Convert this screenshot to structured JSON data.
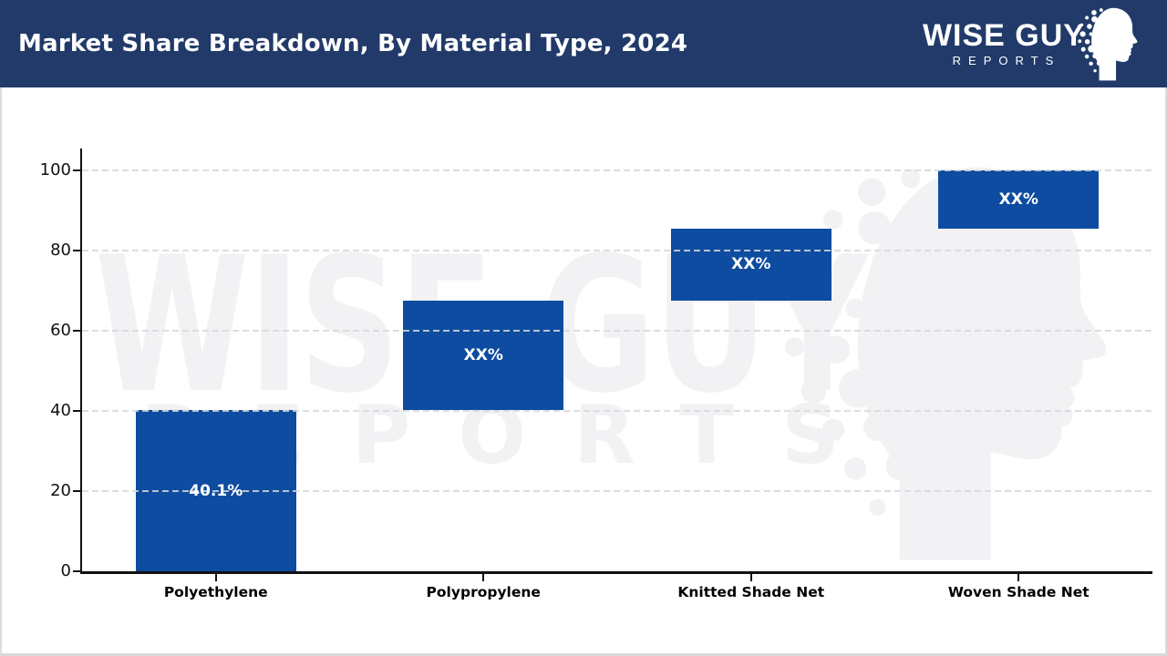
{
  "header": {
    "title": "Market Share Breakdown, By Material Type, 2024"
  },
  "brand": {
    "line1": "WISE GUY",
    "line2": "REPORTS"
  },
  "watermark": {
    "line1": "WISE GUY",
    "line2": "REPORTS"
  },
  "chart_data": {
    "type": "bar",
    "subtype": "waterfall",
    "title": "Market Share Breakdown, By Material Type, 2024",
    "categories": [
      "Polyethylene",
      "Polypropylene",
      "Knitted Shade Net",
      "Woven Shade Net"
    ],
    "segments": [
      [
        0,
        40.1
      ],
      [
        40.1,
        67.5
      ],
      [
        67.5,
        85.4
      ],
      [
        85.4,
        100
      ]
    ],
    "values": [
      40.1,
      27.4,
      17.9,
      14.6
    ],
    "bar_labels": [
      "40.1%",
      "XX%",
      "XX%",
      "XX%"
    ],
    "unit": "percent",
    "y_ticks": [
      0,
      20,
      40,
      60,
      80,
      100
    ],
    "ylim": [
      0,
      105
    ],
    "grid": "horizontal-dashed-over-bars",
    "legend": "none",
    "xlabel": "",
    "ylabel": "",
    "colors": {
      "bar": "#0D4CA0",
      "bar_label": "#FFFFFF",
      "gridline": "#D9D9D9",
      "axis": "#111111",
      "header_bg": "#213A69",
      "header_text": "#FFFFFF",
      "watermark": "#F2F2F4"
    }
  }
}
